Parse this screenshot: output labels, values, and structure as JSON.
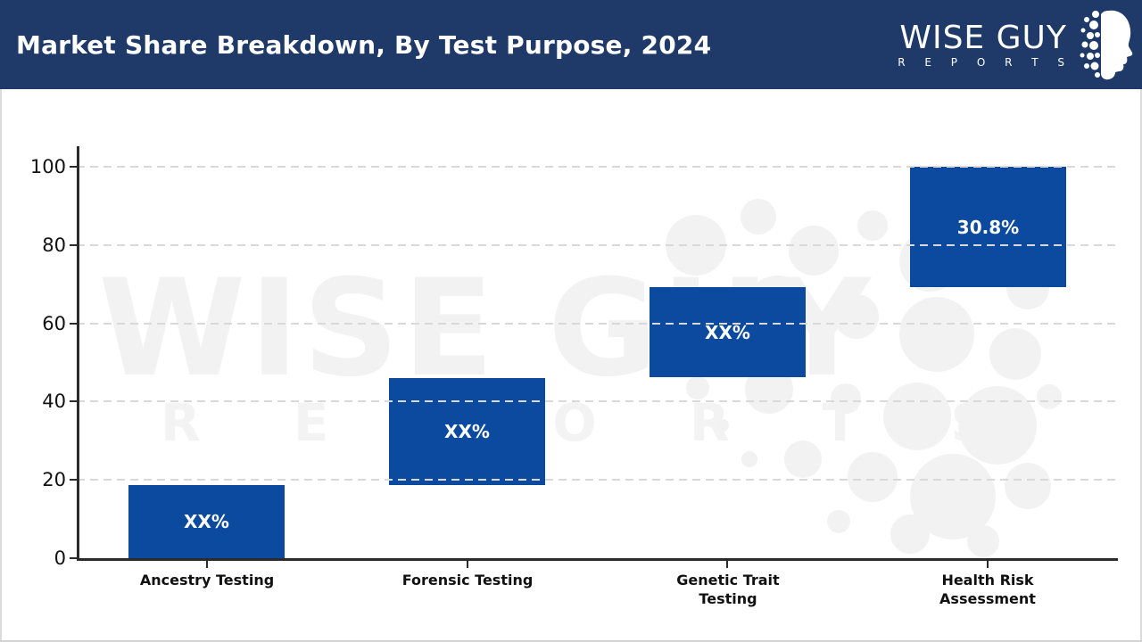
{
  "header": {
    "title": "Market Share Breakdown, By Test Purpose, 2024",
    "bg_color": "#1f3a68",
    "logo": {
      "name": "WISE GUY",
      "sub": "R E P O R T S"
    }
  },
  "watermark": {
    "line1": "WISE GUY",
    "line2": "R E P O R T S"
  },
  "chart_data": {
    "type": "bar",
    "subtype": "floating-waterfall",
    "title": "Market Share Breakdown, By Test Purpose, 2024",
    "categories": [
      "Ancestry Testing",
      "Forensic Testing",
      "Genetic Trait\nTesting",
      "Health Risk\nAssessment"
    ],
    "segments": [
      {
        "category": "Ancestry Testing",
        "start": 0,
        "end": 18.7,
        "label": "XX%"
      },
      {
        "category": "Forensic Testing",
        "start": 18.7,
        "end": 46.1,
        "label": "XX%"
      },
      {
        "category": "Genetic Trait Testing",
        "start": 46.1,
        "end": 69.2,
        "label": "XX%"
      },
      {
        "category": "Health Risk Assessment",
        "start": 69.2,
        "end": 100,
        "label": "30.8%"
      }
    ],
    "y_ticks": [
      0,
      20,
      40,
      60,
      80,
      100
    ],
    "ylim": [
      0,
      105.2
    ],
    "xlabel": "",
    "ylabel": "",
    "grid": true,
    "legend": "none",
    "bar_color": "#0b4a9e",
    "bar_label_color": "#ffffff",
    "gridline_color": "#d9d9d9",
    "axis_color": "#2b2b2b"
  }
}
